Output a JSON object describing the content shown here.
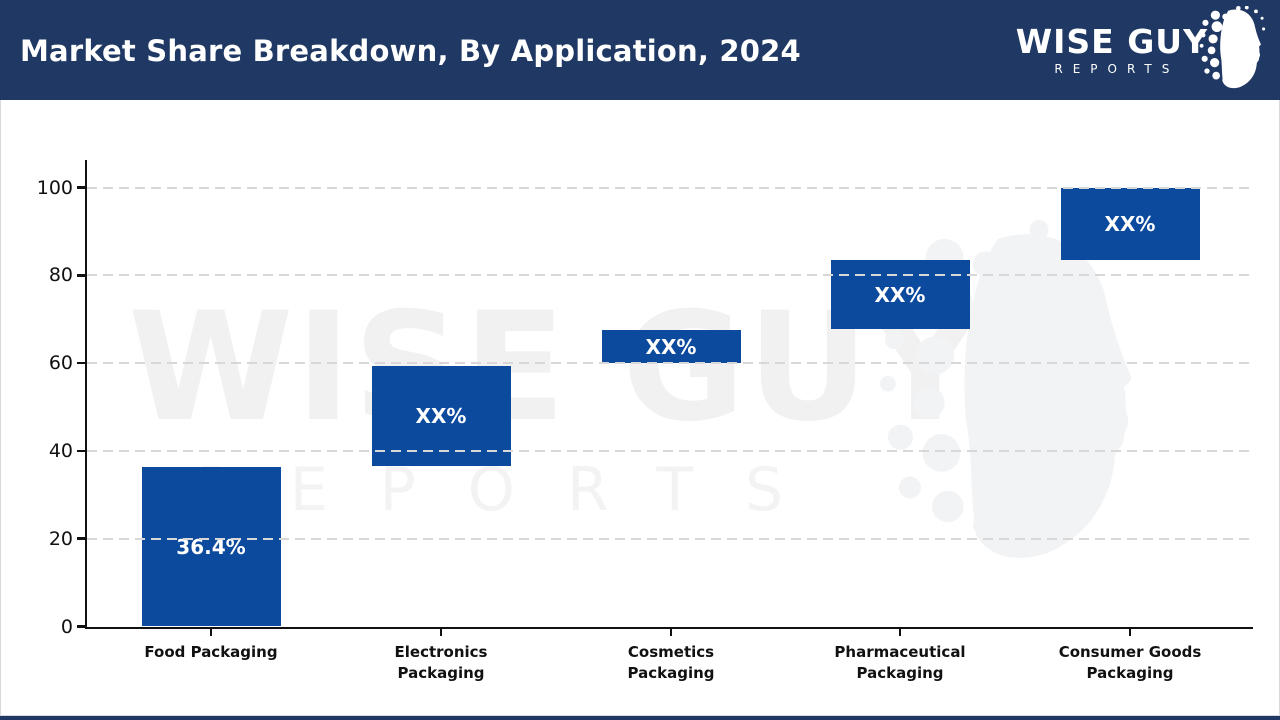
{
  "header": {
    "title": "Market Share Breakdown, By Application, 2024",
    "logo": {
      "line1": "WISE GUY",
      "line2": "REPORTS"
    }
  },
  "watermark": {
    "line1": "WISE GUY",
    "line2": "REPORTS"
  },
  "colors": {
    "header_bg": "#1F3864",
    "bar": "#0C4A9E",
    "grid": "#D8D8D8",
    "axis": "#111111",
    "bar_label": "#FFFFFF",
    "watermark_text": "#F1F1F1",
    "watermark_face": "#F1F3F5"
  },
  "chart_data": {
    "type": "bar",
    "subtype": "waterfall",
    "title": "Market Share Breakdown, By Application, 2024",
    "xlabel": "",
    "ylabel": "",
    "ylim": [
      0,
      100
    ],
    "yticks": [
      0,
      20,
      40,
      60,
      80,
      100
    ],
    "grid": true,
    "legend": false,
    "categories": [
      "Food Packaging",
      "Electronics\nPackaging",
      "Cosmetics\nPackaging",
      "Pharmaceutical\nPackaging",
      "Consumer Goods\nPackaging"
    ],
    "series": [
      {
        "name": "Market Share (%)",
        "segments": [
          {
            "category": "Food Packaging",
            "start": 0,
            "end": 36.4,
            "label": "36.4%"
          },
          {
            "category": "Electronics Packaging",
            "start": 36.5,
            "end": 59.4,
            "label": "XX%"
          },
          {
            "category": "Cosmetics Packaging",
            "start": 60.0,
            "end": 67.5,
            "label": "XX%"
          },
          {
            "category": "Pharmaceutical Packaging",
            "start": 67.7,
            "end": 83.4,
            "label": "XX%"
          },
          {
            "category": "Consumer Goods Packaging",
            "start": 83.4,
            "end": 100,
            "label": "XX%"
          }
        ]
      }
    ]
  }
}
